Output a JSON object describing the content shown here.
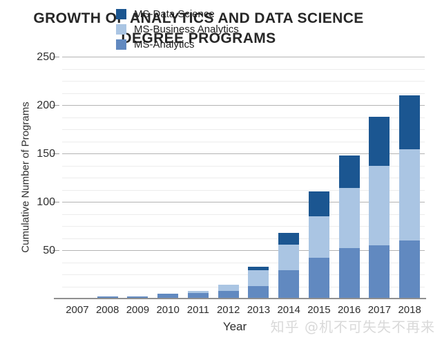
{
  "title": {
    "line1": "GROWTH OF ANALYTICS AND DATA SCIENCE",
    "line2": "DEGREE PROGRAMS"
  },
  "chart_data": {
    "type": "bar",
    "stacked": true,
    "title": "GROWTH OF ANALYTICS AND DATA SCIENCE DEGREE PROGRAMS",
    "xlabel": "Year",
    "ylabel": "Cumulative Number of Programs",
    "categories": [
      "2007",
      "2008",
      "2009",
      "2010",
      "2011",
      "2012",
      "2013",
      "2014",
      "2015",
      "2016",
      "2017",
      "2018"
    ],
    "series": [
      {
        "name": "MS-Data Science",
        "color": "#1b5691",
        "values": [
          0,
          0,
          0,
          0,
          0,
          0,
          4,
          12,
          26,
          34,
          51,
          56
        ]
      },
      {
        "name": "MS-Business Analytics",
        "color": "#aac5e3",
        "values": [
          0,
          0,
          0,
          0,
          2,
          6,
          16,
          27,
          43,
          62,
          82,
          94
        ]
      },
      {
        "name": "MS-Analytics",
        "color": "#6189c0",
        "values": [
          1,
          2,
          2,
          5,
          6,
          8,
          13,
          29,
          42,
          52,
          55,
          60
        ]
      }
    ],
    "totals": [
      1,
      2,
      2,
      5,
      8,
      14,
      33,
      68,
      111,
      148,
      188,
      210
    ],
    "ylim": [
      0,
      250
    ],
    "yticks": [
      50,
      100,
      150,
      200,
      250
    ],
    "minor_grid_step": 12.5,
    "grid": true,
    "legend_position": "top-inside"
  },
  "watermark": "知乎 @机不可失失不再来",
  "colors": {
    "major_grid": "#b3b3b3",
    "minor_grid": "#ececec",
    "axis_line": "#8f8f8f",
    "title_text": "#272727",
    "label_text": "#2e2e2e"
  }
}
